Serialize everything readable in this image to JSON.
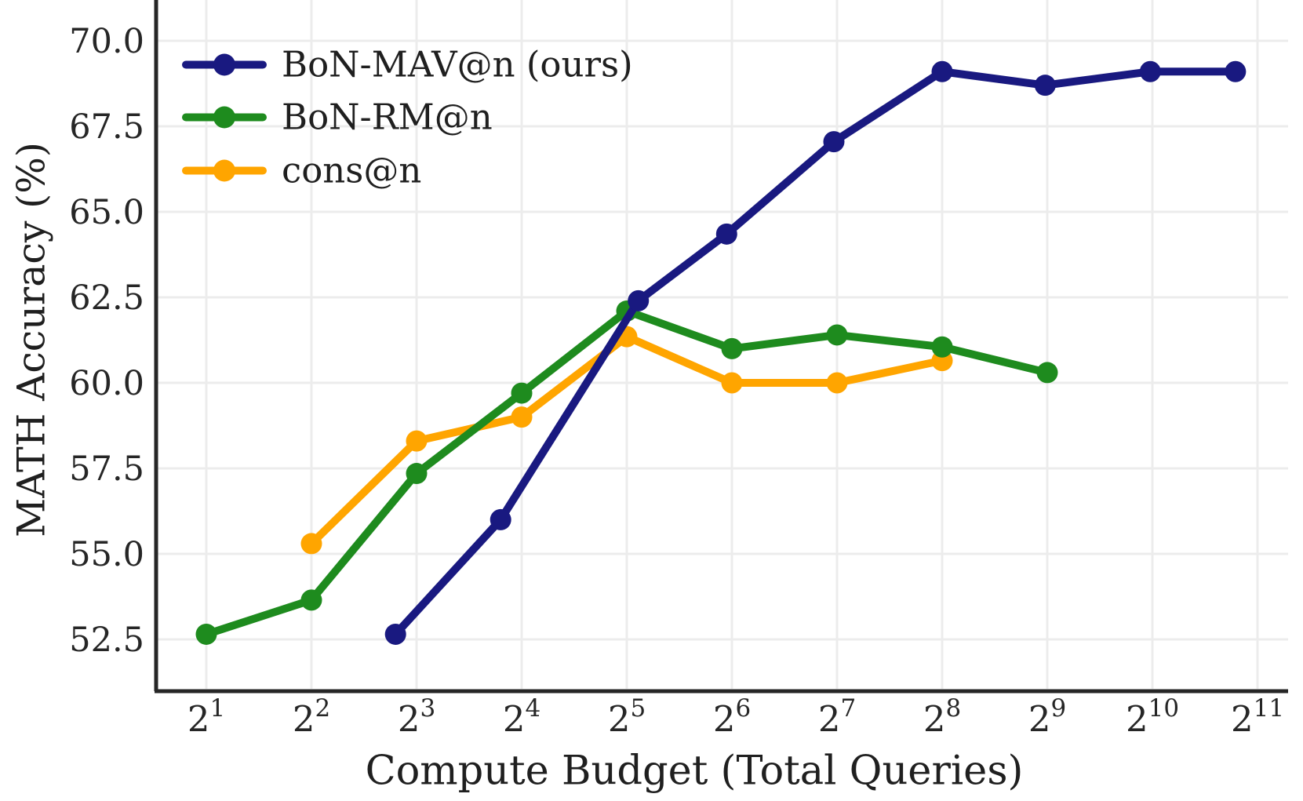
{
  "figure": {
    "background_color": "#ffffff",
    "text_color": "#1f1f1f",
    "grid_color": "#ececec",
    "spine_color": "#262626"
  },
  "chart_data": {
    "type": "line",
    "title": "",
    "xlabel": "Compute Budget (Total Queries)",
    "ylabel": "MATH Accuracy (%)",
    "x_scale": "log2",
    "grid": true,
    "legend_position": "upper left",
    "ylim": [
      51.0,
      71.2
    ],
    "xlim_log2": [
      0.52,
      11.31
    ],
    "x_tick_base": "2",
    "x_ticks": [
      {
        "exponent": 1
      },
      {
        "exponent": 2
      },
      {
        "exponent": 3
      },
      {
        "exponent": 4
      },
      {
        "exponent": 5
      },
      {
        "exponent": 6
      },
      {
        "exponent": 7
      },
      {
        "exponent": 8
      },
      {
        "exponent": 9
      },
      {
        "exponent": 10
      },
      {
        "exponent": 11
      }
    ],
    "y_ticks": [
      {
        "label": "70.0",
        "value": 70.0
      },
      {
        "label": "67.5",
        "value": 67.5
      },
      {
        "label": "65.0",
        "value": 65.0
      },
      {
        "label": "62.5",
        "value": 62.5
      },
      {
        "label": "60.0",
        "value": 60.0
      },
      {
        "label": "57.5",
        "value": 57.5
      },
      {
        "label": "55.0",
        "value": 55.0
      },
      {
        "label": "52.5",
        "value": 52.5
      }
    ],
    "series": [
      {
        "name": "BoN-MAV@n (ours)",
        "color": "#191980",
        "x_log2_total_queries": [
          2.8,
          3.8,
          5.11,
          5.95,
          6.97,
          8.0,
          8.98,
          9.98,
          10.79
        ],
        "accuracy": [
          52.65,
          56.0,
          62.4,
          64.35,
          67.05,
          69.1,
          68.7,
          69.1,
          69.1
        ]
      },
      {
        "name": "BoN-RM@n",
        "color": "#1e8b1e",
        "x_log2_total_queries": [
          1,
          2,
          3,
          4,
          5,
          6,
          7,
          8,
          9
        ],
        "accuracy": [
          52.65,
          53.65,
          57.35,
          59.7,
          62.1,
          61.0,
          61.4,
          61.05,
          60.3
        ]
      },
      {
        "name": "cons@n",
        "color": "#ffa500",
        "x_log2_total_queries": [
          2,
          3,
          4,
          5,
          6,
          7,
          8
        ],
        "accuracy": [
          55.3,
          58.3,
          59.0,
          61.35,
          60.0,
          60.0,
          60.65
        ]
      }
    ]
  }
}
